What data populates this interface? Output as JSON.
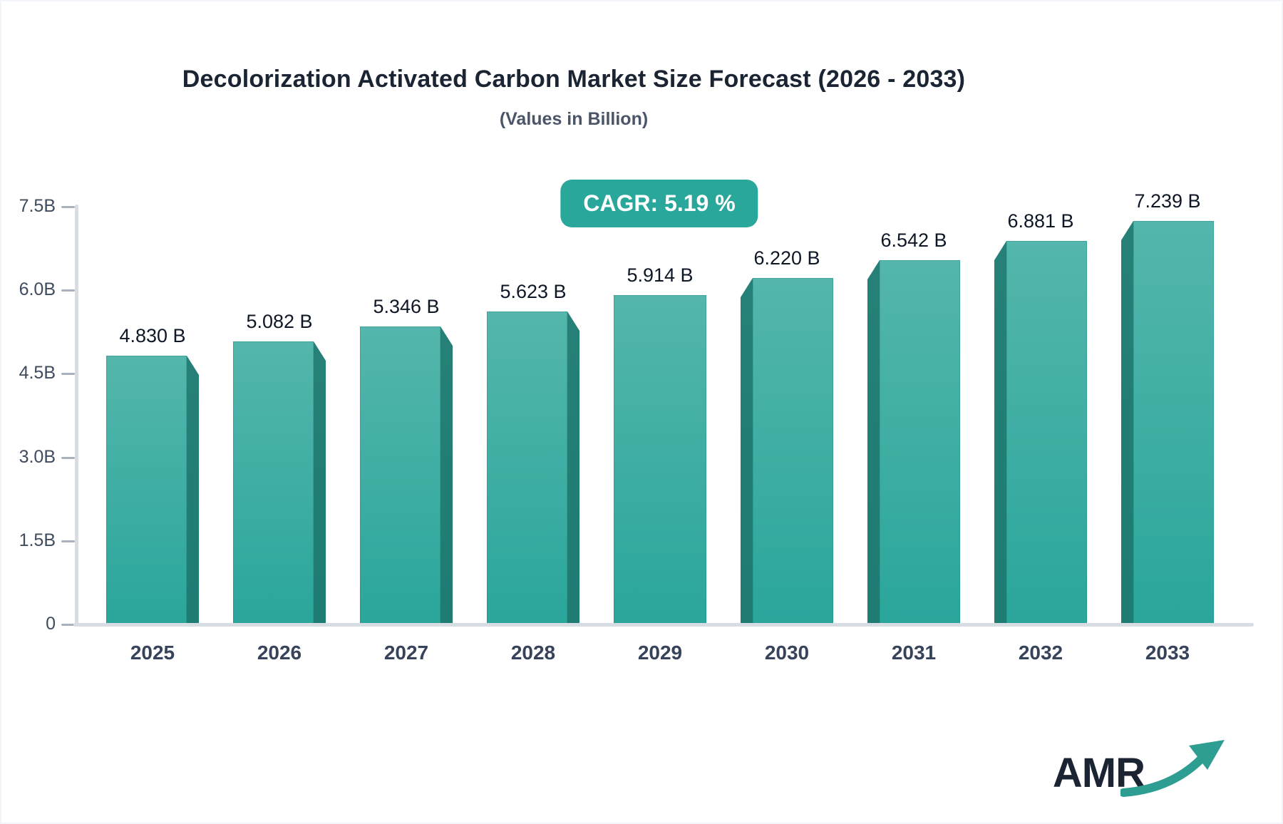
{
  "header": {
    "title": "Decolorization Activated Carbon Market Size Forecast (2026 - 2033)",
    "subtitle": "(Values in Billion)"
  },
  "badge": {
    "label": "CAGR: 5.19 %"
  },
  "logo": {
    "text": "AMR",
    "arrow_icon": "trend-up-arrow-icon"
  },
  "chart_data": {
    "type": "bar",
    "title": "Decolorization Activated Carbon Market Size Forecast (2026 - 2033)",
    "subtitle": "(Values in Billion)",
    "cagr_label": "CAGR: 5.19 %",
    "categories": [
      "2025",
      "2026",
      "2027",
      "2028",
      "2029",
      "2030",
      "2031",
      "2032",
      "2033"
    ],
    "values": [
      4.83,
      5.082,
      5.346,
      5.623,
      5.914,
      6.22,
      6.542,
      6.881,
      7.239
    ],
    "value_labels": [
      "4.830 B",
      "5.082 B",
      "5.346 B",
      "5.623 B",
      "5.914 B",
      "6.220 B",
      "6.542 B",
      "6.881 B",
      "7.239 B"
    ],
    "unit": "B",
    "xlabel": "",
    "ylabel": "",
    "ylim": [
      0,
      7.5
    ],
    "yticks": [
      {
        "value": 0,
        "label": "0"
      },
      {
        "value": 1.5,
        "label": "1.5B"
      },
      {
        "value": 3.0,
        "label": "3.0B"
      },
      {
        "value": 4.5,
        "label": "4.5B"
      },
      {
        "value": 6.0,
        "label": "6.0B"
      },
      {
        "value": 7.5,
        "label": "7.5B"
      }
    ],
    "grid": false,
    "legend": false,
    "bar_style": "3d-beveled, bevel on right for bars left of center, bevel on left for bars right of center, center bar flat",
    "colors": {
      "bar_face_top": "#54b6ac",
      "bar_face_bottom": "#2aa69b",
      "bar_side": "#1e7c73",
      "badge_background": "#2aa79b",
      "badge_text": "#ffffff",
      "axis_line": "#d8dde4",
      "tick_mark": "#a9b1bd",
      "tick_text": "#3f4c5e",
      "value_label_text": "#0e1726",
      "category_text": "#36435a",
      "title_text": "#1a2433",
      "subtitle_text": "#4a5568",
      "logo_text": "#1a2433",
      "logo_arrow": "#2e9d92"
    }
  }
}
